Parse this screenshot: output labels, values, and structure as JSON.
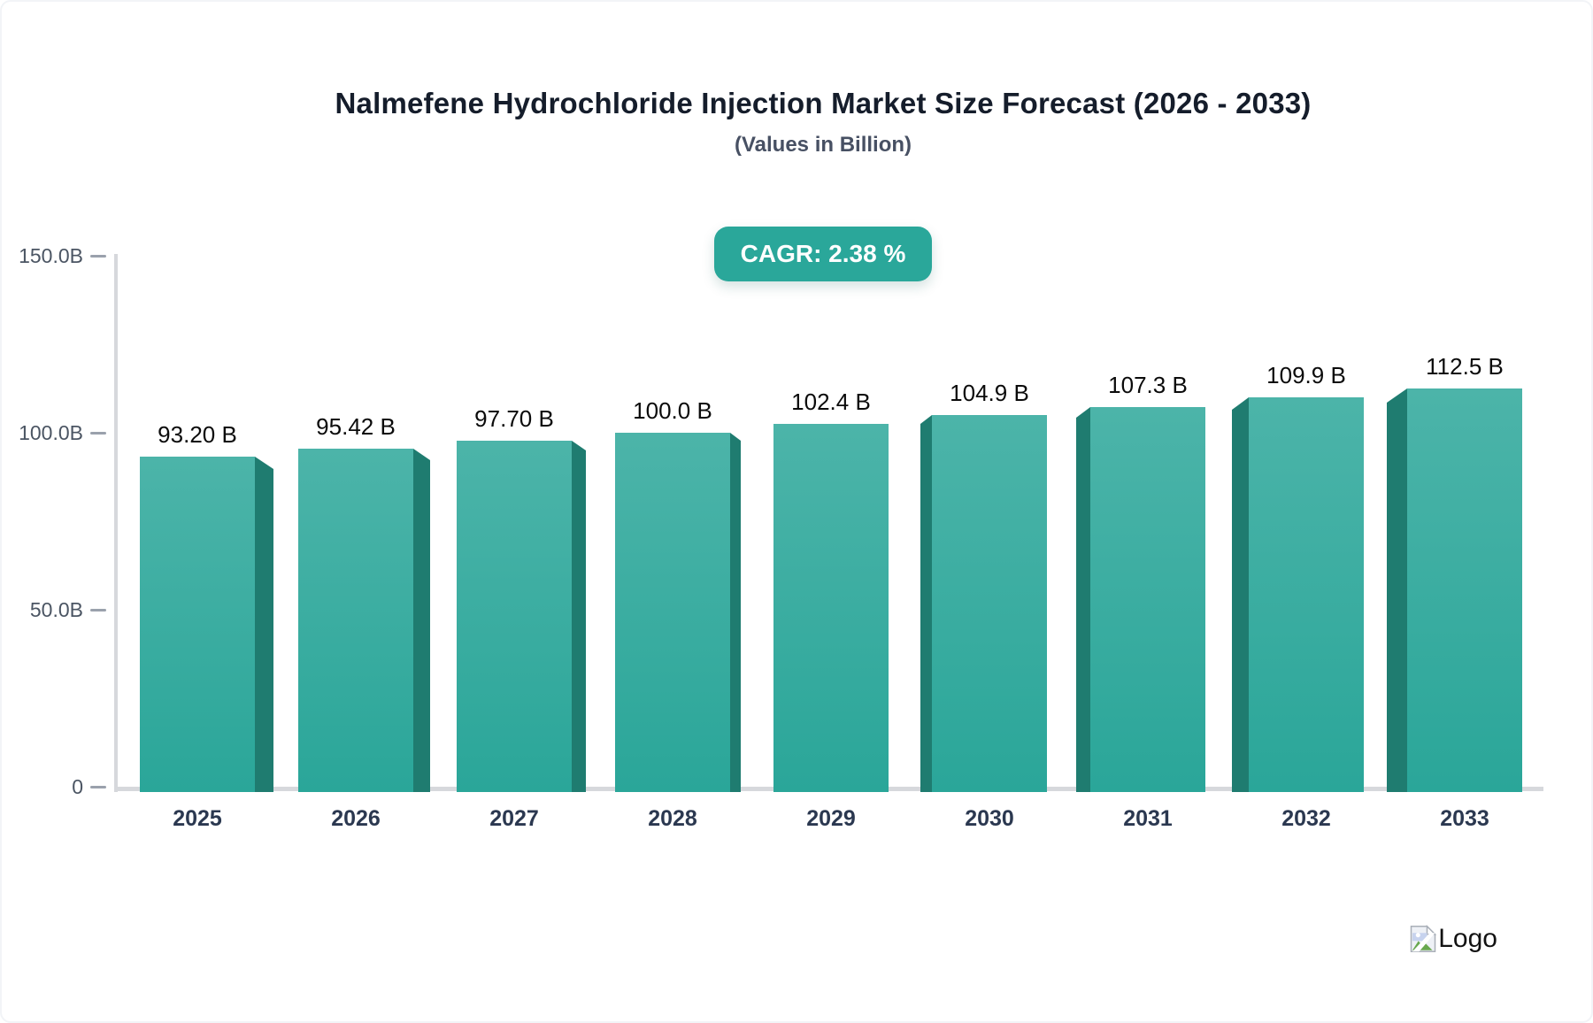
{
  "page": {
    "title": "Nalmefene Hydrochloride Injection Market Size Forecast (2026 - 2033)",
    "subtitle": "(Values in Billion)",
    "cagr_badge": "CAGR: 2.38 %",
    "logo_text": "Logo"
  },
  "colors": {
    "badge_bg": "#2aa79a",
    "badge_text": "#ffffff",
    "bar_face_top": "#4cb4a9",
    "bar_face_bottom": "#2aa699",
    "bar_side": "#1f7c70",
    "axis_line": "#d6d8dc",
    "axis_label": "#4b5563",
    "year_label": "#2b3850",
    "value_label": "#0b0b0b"
  },
  "chart_data": {
    "type": "bar",
    "title": "Nalmefene Hydrochloride Injection Market Size Forecast (2026 - 2033)",
    "subtitle": "(Values in Billion)",
    "unit": "Billion",
    "categories": [
      "2025",
      "2026",
      "2027",
      "2028",
      "2029",
      "2030",
      "2031",
      "2032",
      "2033"
    ],
    "values": [
      93.2,
      95.42,
      97.7,
      100.0,
      102.4,
      104.9,
      107.3,
      109.9,
      112.5
    ],
    "bar_labels": [
      "93.20 B",
      "95.42 B",
      "97.70 B",
      "100.0 B",
      "102.4 B",
      "104.9 B",
      "107.3 B",
      "109.9 B",
      "112.5 B"
    ],
    "annotation": "CAGR: 2.38 %",
    "xlabel": "",
    "ylabel": "",
    "ylim": [
      0,
      150
    ],
    "y_ticks": [
      "150.0B",
      "100.0B",
      "50.0B",
      "0"
    ],
    "y_tick_values": [
      150,
      100,
      50,
      0
    ],
    "grid": false,
    "legend": false,
    "bar_style": "3d-extruded, perspective vanishing toward center bar"
  }
}
